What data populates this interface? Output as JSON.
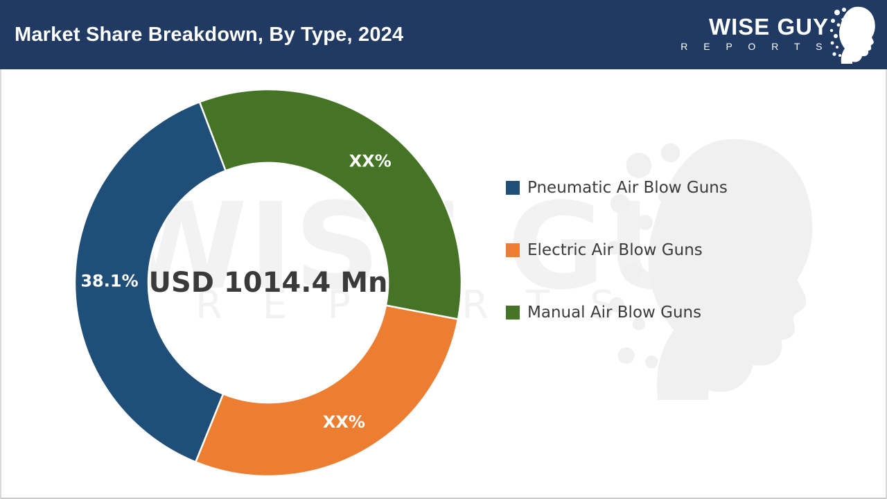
{
  "header": {
    "title": "Market Share Breakdown, By Type, 2024",
    "bg_color": "#213A64",
    "logo": {
      "line1": "WISE GUY",
      "line2": "R E P O R T S"
    }
  },
  "watermark": {
    "line1": "WISE GUY",
    "line2": "REPORTS"
  },
  "chart_data": {
    "type": "pie",
    "subtype": "donut",
    "title": "Market Share Breakdown, By Type, 2024",
    "center_label": "USD 1014.4 Mn",
    "legend_position": "right",
    "start_angle_deg": 110.8,
    "draw_order_clockwise": [
      2,
      1,
      0
    ],
    "segments": [
      {
        "label": "Pneumatic Air Blow Guns",
        "display_value": "38.1%",
        "value_pct_est": 38.1,
        "color": "#1F4E79"
      },
      {
        "label": "Electric Air Blow Guns",
        "display_value": "XX%",
        "value_pct_est": 28.1,
        "color": "#ED7D31"
      },
      {
        "label": "Manual Air Blow Guns",
        "display_value": "XX%",
        "value_pct_est": 33.8,
        "color": "#467427"
      }
    ]
  },
  "legend": {
    "items": [
      {
        "label": "Pneumatic Air Blow Guns"
      },
      {
        "label": "Electric Air Blow Guns"
      },
      {
        "label": "Manual Air Blow Guns"
      }
    ]
  }
}
